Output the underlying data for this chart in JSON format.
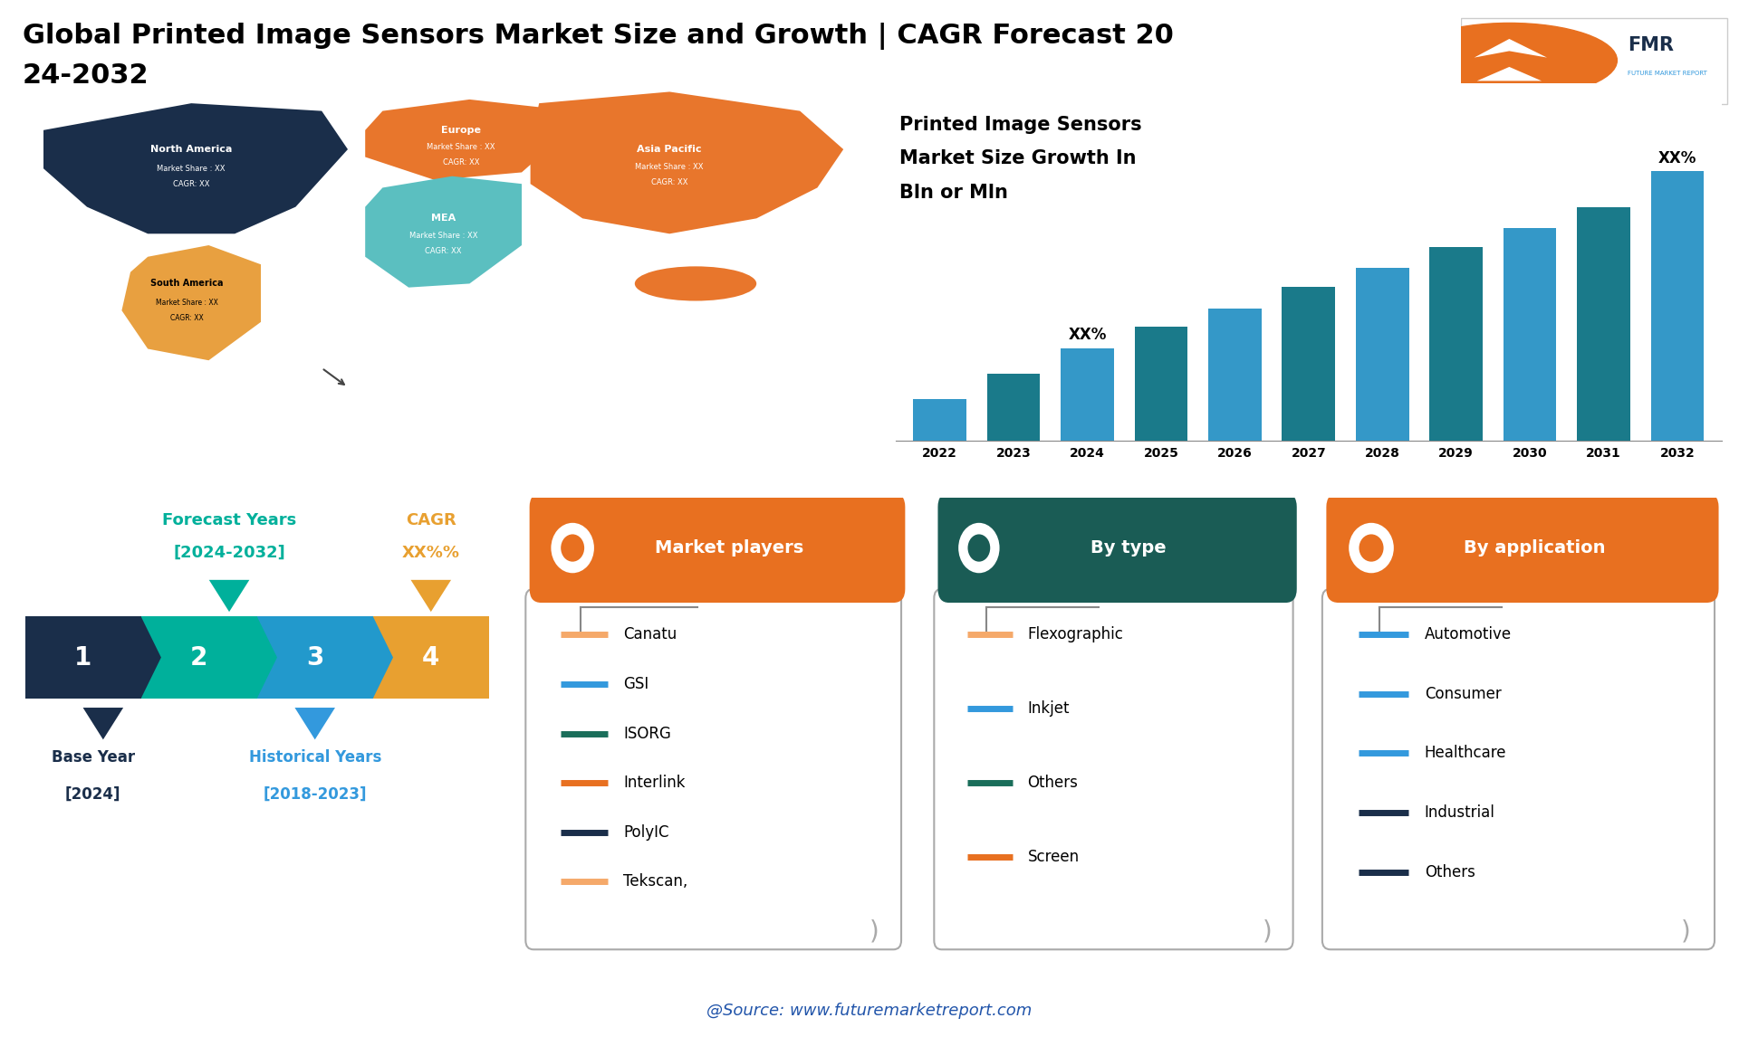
{
  "title_line1": "Global Printed Image Sensors Market Size and Growth | CAGR Forecast 20",
  "title_line2": "24-2032",
  "title_fontsize": 22,
  "bg_color": "#ffffff",
  "bar_color_light": "#3498c8",
  "bar_color_dark": "#1a7a8a",
  "bar_years": [
    "2022",
    "2023",
    "2024",
    "2025",
    "2026",
    "2027",
    "2028",
    "2029",
    "2030",
    "2031",
    "2032"
  ],
  "bar_values": [
    1.0,
    1.6,
    2.2,
    2.7,
    3.15,
    3.65,
    4.1,
    4.6,
    5.05,
    5.55,
    6.4
  ],
  "bar_label_2024": "XX%",
  "bar_label_2032": "XX%",
  "chart_title_line1": "Printed Image Sensors",
  "chart_title_line2": "Market Size Growth In",
  "chart_title_line3": "Bln or Mln",
  "na_color": "#1a2e4a",
  "sa_color": "#e8a040",
  "eu_color": "#e8762c",
  "mea_color": "#5bbfc0",
  "ap_color": "#e8762c",
  "forecast_label_line1": "Forecast Years",
  "forecast_label_line2": "[2024-2032]",
  "forecast_color": "#00b09b",
  "cagr_label_line1": "CAGR",
  "cagr_label_line2": "XX%%",
  "cagr_color": "#e8a030",
  "steps": [
    {
      "num": "1",
      "color": "#1a2e4a"
    },
    {
      "num": "2",
      "color": "#00b09b"
    },
    {
      "num": "3",
      "color": "#2299cc"
    },
    {
      "num": "4",
      "color": "#e8a030"
    }
  ],
  "base_year_line1": "Base Year",
  "base_year_line2": "[2024]",
  "base_year_color": "#1a2e4a",
  "historical_line1": "Historical Years",
  "historical_line2": "[2018-2023]",
  "historical_color": "#3399dd",
  "market_players_header": "Market players",
  "market_players_header_color": "#e87020",
  "market_players": [
    "Canatu",
    "GSI",
    "ISORG",
    "Interlink",
    "PolyIC",
    "Tekscan,"
  ],
  "market_players_dots": [
    "#f5a96a",
    "#3399dd",
    "#1a6e5a",
    "#e87020",
    "#1a2e4a",
    "#f5a96a"
  ],
  "by_type_header": "By type",
  "by_type_header_color": "#1a5c55",
  "by_type": [
    "Flexographic",
    "Inkjet",
    "Others",
    "Screen"
  ],
  "by_type_dots": [
    "#f5a96a",
    "#3399dd",
    "#1a6e5a",
    "#e87020"
  ],
  "by_app_header": "By application",
  "by_app_header_color": "#e87020",
  "by_app": [
    "Automotive",
    "Consumer",
    "Healthcare",
    "Industrial",
    "Others"
  ],
  "by_app_dots": [
    "#3399dd",
    "#3399dd",
    "#3399dd",
    "#1a2e4a",
    "#1a2e4a"
  ],
  "source_text": "@Source: www.futuremarketreport.com",
  "source_color": "#2255aa"
}
